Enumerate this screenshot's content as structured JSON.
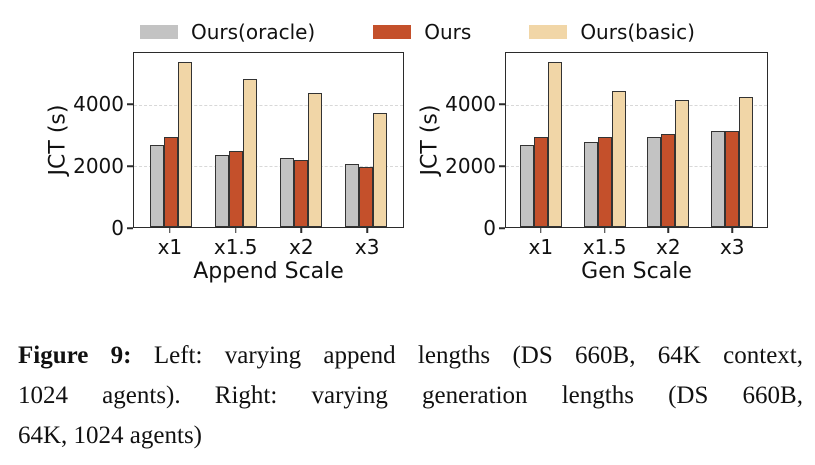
{
  "figure": {
    "bar_edge_color": "#333333",
    "legend": {
      "items": [
        {
          "label": "Ours(oracle)",
          "color": "#c3c3c3"
        },
        {
          "label": "Ours",
          "color": "#c4502b"
        },
        {
          "label": "Ours(basic)",
          "color": "#f1d6a7"
        }
      ]
    },
    "caption": {
      "line1_bold": "Figure 9:",
      "line1_rest": " Left: varying append lengths (DS 660B, 64K context,",
      "line2": "1024 agents). Right: varying generation lengths (DS 660B,",
      "line3": "64K, 1024 agents)"
    }
  },
  "chart_data": [
    {
      "type": "bar",
      "title": "",
      "categories": [
        "x1",
        "x1.5",
        "x2",
        "x3"
      ],
      "series": [
        {
          "name": "Ours(oracle)",
          "color": "#c3c3c3",
          "values": [
            2700,
            2350,
            2250,
            2050
          ]
        },
        {
          "name": "Ours",
          "color": "#c4502b",
          "values": [
            2950,
            2500,
            2200,
            1950
          ]
        },
        {
          "name": "Ours(basic)",
          "color": "#f1d6a7",
          "values": [
            5400,
            4850,
            4400,
            3750
          ]
        }
      ],
      "xlabel": "Append Scale",
      "ylabel": "JCT (s)",
      "yticks": [
        0,
        2000,
        4000
      ],
      "ylim": [
        0,
        5700
      ],
      "grid": "horizontal dashed at yticks",
      "legend_position": "above-figure"
    },
    {
      "type": "bar",
      "title": "",
      "categories": [
        "x1",
        "x1.5",
        "x2",
        "x3"
      ],
      "series": [
        {
          "name": "Ours(oracle)",
          "color": "#c3c3c3",
          "values": [
            2700,
            2800,
            2950,
            3150
          ]
        },
        {
          "name": "Ours",
          "color": "#c4502b",
          "values": [
            2950,
            2950,
            3050,
            3150
          ]
        },
        {
          "name": "Ours(basic)",
          "color": "#f1d6a7",
          "values": [
            5400,
            4450,
            4150,
            4250
          ]
        }
      ],
      "xlabel": "Gen Scale",
      "ylabel": "JCT (s)",
      "yticks": [
        0,
        2000,
        4000
      ],
      "ylim": [
        0,
        5700
      ],
      "grid": "horizontal dashed at yticks",
      "legend_position": "above-figure"
    }
  ]
}
